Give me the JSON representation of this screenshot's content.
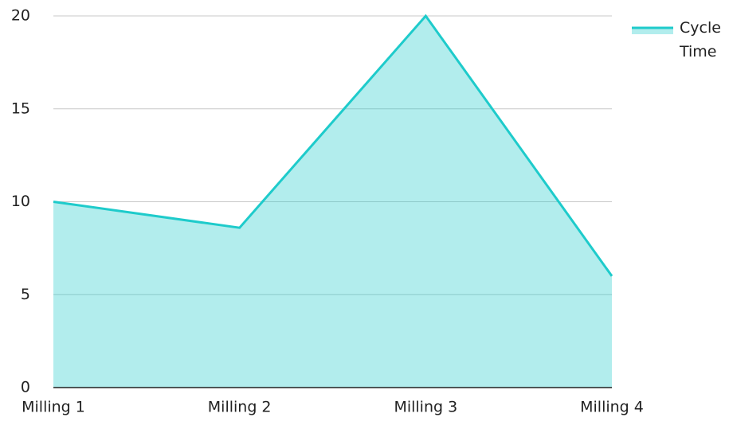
{
  "chart_data": {
    "type": "area",
    "categories": [
      "Milling 1",
      "Milling 2",
      "Milling 3",
      "Milling 4"
    ],
    "series": [
      {
        "name": "Cycle Time",
        "color": "#1ecbcb",
        "values": [
          10,
          8.6,
          20,
          6
        ]
      }
    ],
    "ylim": [
      0,
      20
    ],
    "yticks": [
      0,
      5,
      10,
      15,
      20
    ],
    "grid": true,
    "legend": "right"
  }
}
